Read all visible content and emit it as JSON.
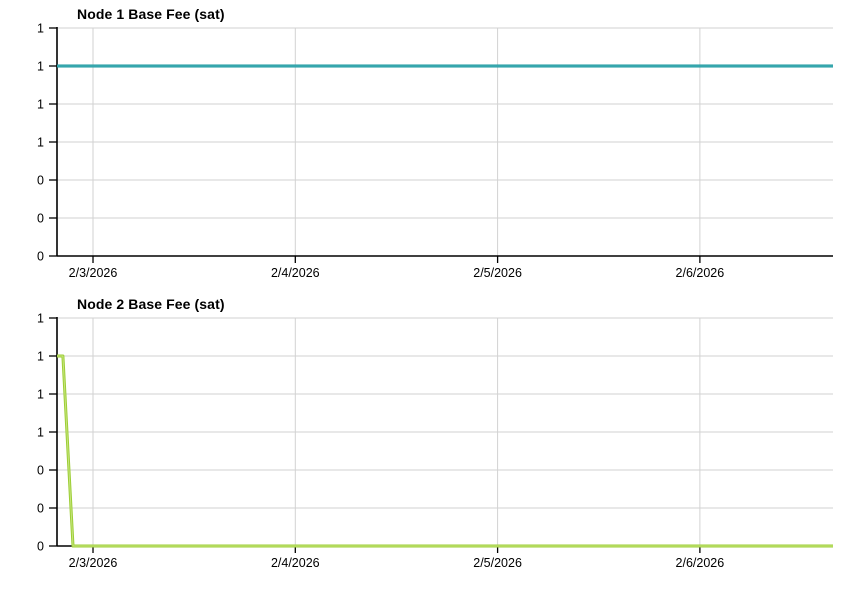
{
  "colors": {
    "background": "#FFFFFF",
    "grid": "#D2D2D2",
    "axis": "#000000",
    "text": "#000000",
    "node1_line": "#17979E",
    "node2_line": "#9CCE35"
  },
  "chart_data": [
    {
      "type": "line",
      "title": "Node 1 Base Fee (sat)",
      "xlabel": "",
      "ylabel": "",
      "x_unit": "days since 2/3/2026 00:00",
      "xlim": [
        -0.178,
        3.658
      ],
      "ylim": [
        0,
        1.2
      ],
      "grid": true,
      "legend": "none",
      "x_ticks": {
        "values": [
          0,
          1,
          2,
          3
        ],
        "labels": [
          "2/3/2026",
          "2/4/2026",
          "2/5/2026",
          "2/6/2026"
        ]
      },
      "y_ticks": {
        "values": [
          1.2,
          1.0,
          0.8,
          0.6,
          0.4,
          0.2,
          0
        ],
        "labels": [
          "1",
          "1",
          "1",
          "1",
          "0",
          "0",
          "0"
        ]
      },
      "series": [
        {
          "name": "Node 1 base fee",
          "color": "#17979E",
          "highlight": "#53B6BC",
          "points": [
            [
              -0.178,
              1
            ],
            [
              3.658,
              1
            ]
          ]
        }
      ]
    },
    {
      "type": "line",
      "title": "Node 2 Base Fee (sat)",
      "xlabel": "",
      "ylabel": "",
      "x_unit": "days since 2/3/2026 00:00",
      "xlim": [
        -0.178,
        3.658
      ],
      "ylim": [
        0,
        1.2
      ],
      "grid": true,
      "legend": "none",
      "x_ticks": {
        "values": [
          0,
          1,
          2,
          3
        ],
        "labels": [
          "2/3/2026",
          "2/4/2026",
          "2/5/2026",
          "2/6/2026"
        ]
      },
      "y_ticks": {
        "values": [
          1.2,
          1.0,
          0.8,
          0.6,
          0.4,
          0.2,
          0
        ],
        "labels": [
          "1",
          "1",
          "1",
          "1",
          "0",
          "0",
          "0"
        ]
      },
      "series": [
        {
          "name": "Node 2 base fee",
          "color": "#9CCE35",
          "highlight": "#C7E57E",
          "points": [
            [
              -0.178,
              1
            ],
            [
              -0.149,
              1
            ],
            [
              -0.099,
              0
            ],
            [
              3.658,
              0
            ]
          ]
        }
      ]
    }
  ]
}
